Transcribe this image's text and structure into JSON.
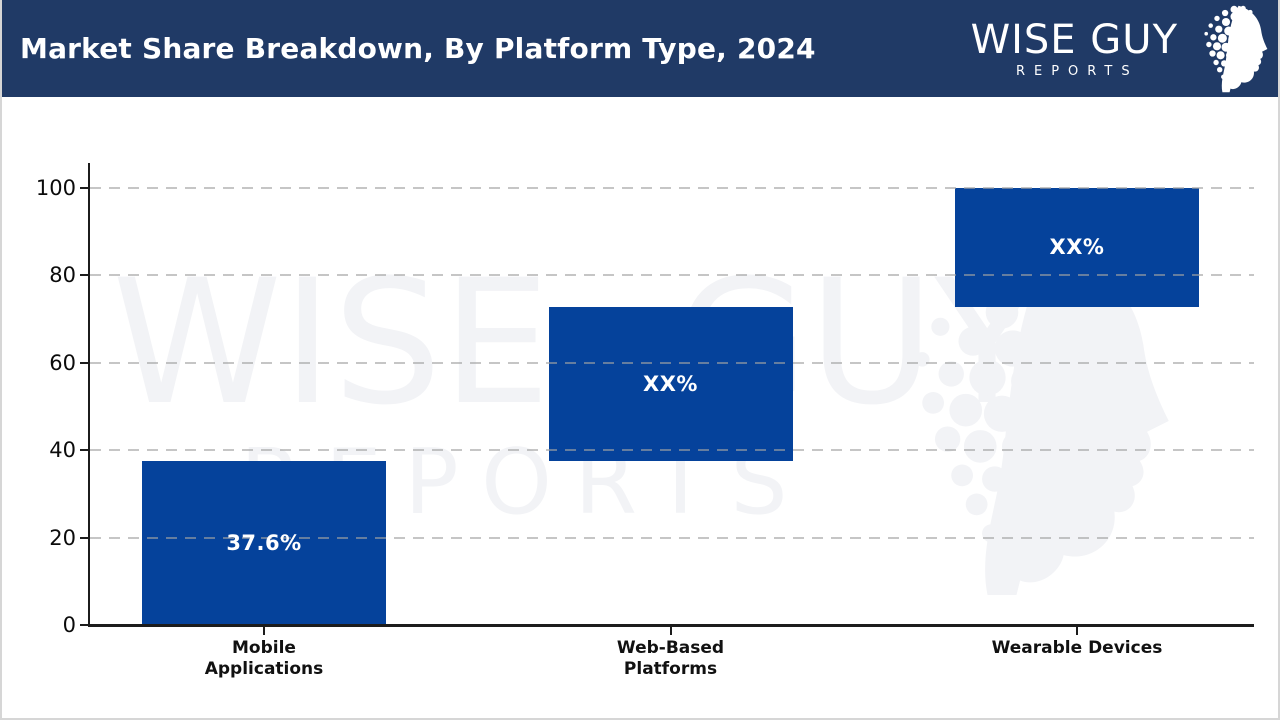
{
  "header": {
    "title": "Market Share Breakdown, By Platform Type, 2024",
    "bg_color": "#203A66",
    "logo": {
      "wordmark": "WISE GUY",
      "subtext": "REPORTS"
    }
  },
  "watermark": {
    "line1": "WISE GUY",
    "line2": "REPORTS"
  },
  "chart_data": {
    "type": "bar",
    "subtype": "floating-waterfall",
    "title": "Market Share Breakdown, By Platform Type, 2024",
    "categories": [
      "Mobile\nApplications",
      "Web-Based\nPlatforms",
      "Wearable Devices"
    ],
    "segments": [
      {
        "category": "Mobile Applications",
        "start": 0,
        "end": 37.6,
        "value": 37.6,
        "label": "37.6%"
      },
      {
        "category": "Web-Based Platforms",
        "start": 37.6,
        "end": 72.7,
        "value": 35.1,
        "label": "XX%"
      },
      {
        "category": "Wearable Devices",
        "start": 72.7,
        "end": 100,
        "value": 27.3,
        "label": "XX%"
      }
    ],
    "yticks": [
      0,
      20,
      40,
      60,
      80,
      100
    ],
    "ylim": [
      0,
      105
    ],
    "xlabel": "",
    "ylabel": "",
    "legend": null,
    "grid": "horizontal-dashed-over-bars",
    "bar_color": "#05429B",
    "value_label_color": "#FFFFFF",
    "axis_color": "#1c1c1c"
  }
}
